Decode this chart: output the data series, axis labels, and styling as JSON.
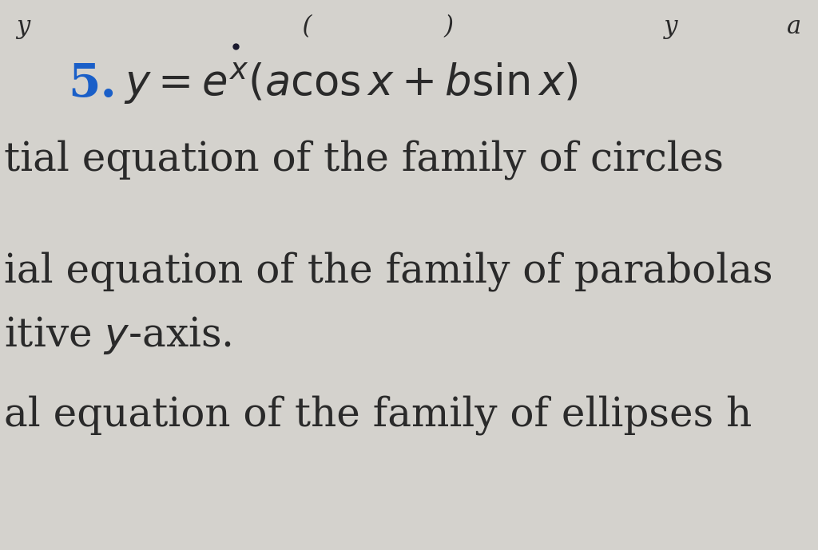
{
  "background_color": "#d4d2cd",
  "number_color": "#1a5fc8",
  "body_color": "#2a2a2a",
  "number_fontsize": 42,
  "formula_fontsize": 38,
  "body_fontsize": 36,
  "small_body_fontsize": 36,
  "top_partial_text": "y                (            )              y                a",
  "line1_num": "5.",
  "line1_formula": "$y = e^x(a\\cos x + b\\sin x)$",
  "line2": "tial equation of the family of circles",
  "line3": "ial equation of the family of parabolas",
  "line4": "itive $y$-axis.",
  "line5": "al equation of the family of ellipses h",
  "dot_accent": "˙"
}
